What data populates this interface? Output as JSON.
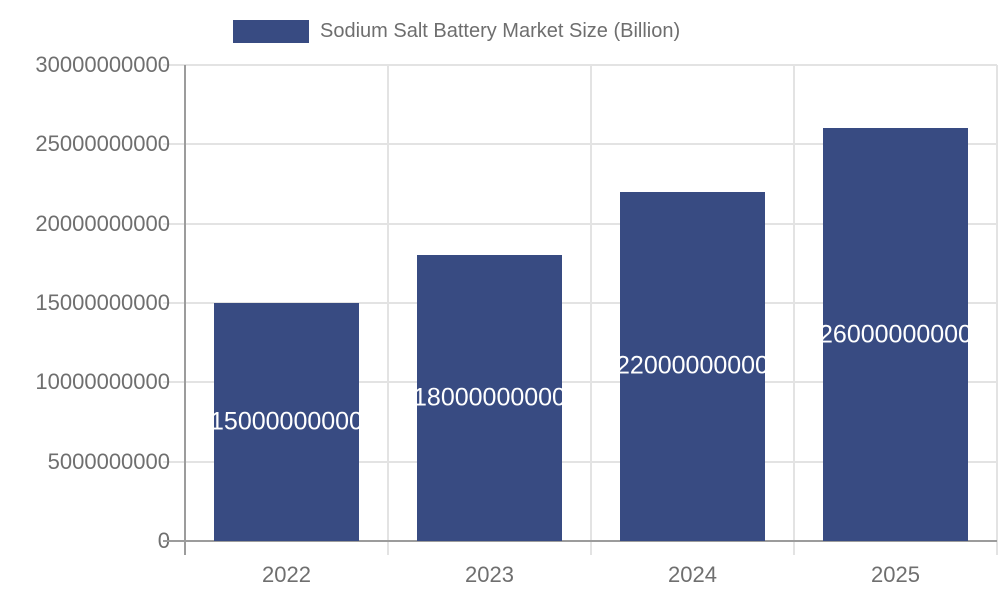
{
  "chart_data": {
    "type": "bar",
    "title": "",
    "categories": [
      "2022",
      "2023",
      "2024",
      "2025"
    ],
    "series": [
      {
        "name": "Sodium Salt Battery Market Size (Billion)",
        "values": [
          15000000000,
          18000000000,
          22000000000,
          26000000000
        ],
        "value_labels": [
          "15000000000",
          "18000000000",
          "22000000000",
          "26000000000"
        ]
      }
    ],
    "xlabel": "",
    "ylabel": "",
    "ylim": [
      0,
      30000000000
    ],
    "ytick_step": 5000000000,
    "ytick_labels": [
      "0",
      "5000000000",
      "10000000000",
      "15000000000",
      "20000000000",
      "25000000000",
      "30000000000"
    ],
    "grid": true,
    "legend": {
      "position": "top",
      "label": "Sodium Salt Battery Market Size (Billion)"
    },
    "colors": {
      "bar": "#384b82",
      "grid": "#e3e3e3",
      "axis": "#9c9c9c",
      "tick_label": "#6f6f6f",
      "legend_text": "#6e6e6e",
      "value_label": "#ffffff",
      "background": "#ffffff"
    }
  }
}
